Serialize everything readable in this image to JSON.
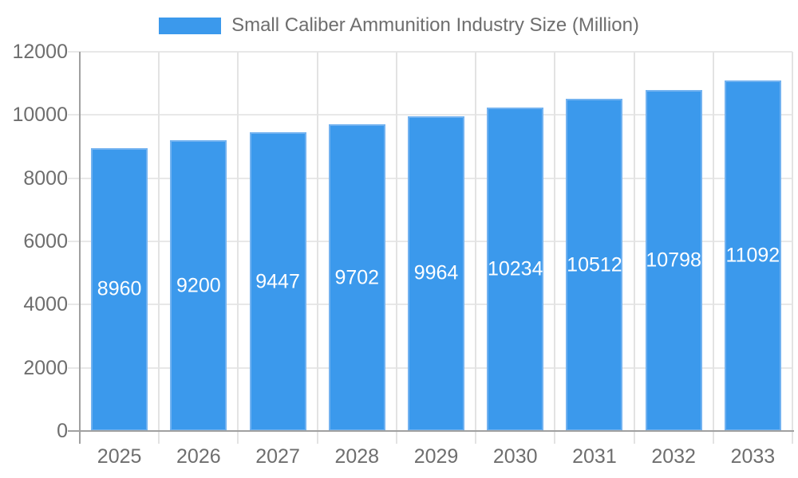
{
  "legend": {
    "label": "Small Caliber Ammunition Industry Size (Million)"
  },
  "chart_data": {
    "type": "bar",
    "title": "Small Caliber Ammunition Industry Size (Million)",
    "categories": [
      "2025",
      "2026",
      "2027",
      "2028",
      "2029",
      "2030",
      "2031",
      "2032",
      "2033"
    ],
    "series": [
      {
        "name": "Small Caliber Ammunition Industry Size (Million)",
        "values": [
          8960,
          9200,
          9447,
          9702,
          9964,
          10234,
          10512,
          10798,
          11092
        ]
      }
    ],
    "data_labels": [
      "8960",
      "9200",
      "9447",
      "9702",
      "9964",
      "10234",
      "10512",
      "10798",
      "11092"
    ],
    "xlabel": "",
    "ylabel": "",
    "ylim": [
      0,
      12000
    ],
    "y_ticks": [
      0,
      2000,
      4000,
      6000,
      8000,
      10000,
      12000
    ],
    "y_tick_labels": [
      "0",
      "2000",
      "4000",
      "6000",
      "8000",
      "10000",
      "12000"
    ],
    "grid": true,
    "legend_position": "top"
  },
  "style": {
    "bar_color": "#3b99ec",
    "bar_border_color": "#72b2f0",
    "bar_label_color": "#ffffff",
    "grid_color": "#e8e8e8",
    "separator_color": "#e3e3e3",
    "axis_color": "#a0a0a0",
    "tick_label_color": "#6e6e6e",
    "background_color": "#ffffff"
  }
}
